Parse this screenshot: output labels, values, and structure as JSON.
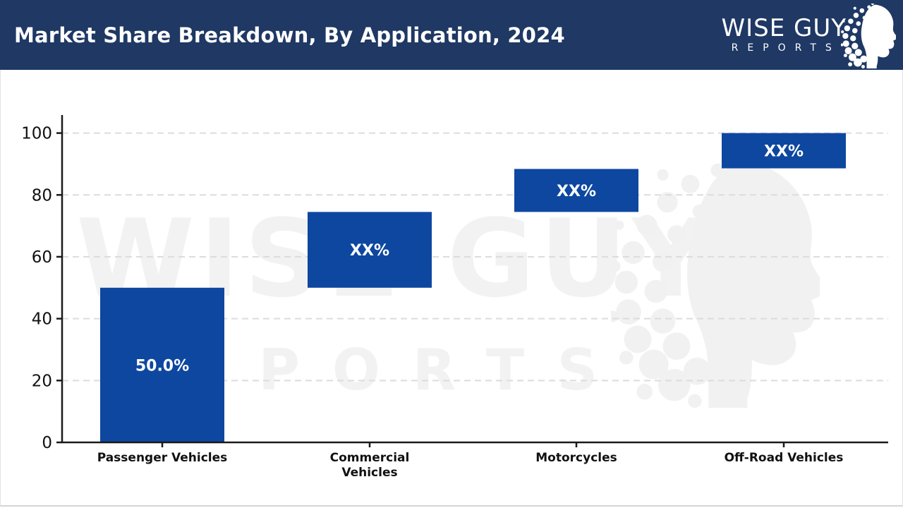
{
  "header": {
    "title": "Market Share Breakdown, By Application, 2024",
    "bg_color": "#1f3864",
    "logo": {
      "line1": "WISE GUY",
      "line2": "REPORTS"
    }
  },
  "watermark": {
    "line1": "WISE GUY",
    "line2": "REPORTS"
  },
  "chart_data": {
    "type": "bar",
    "variant": "waterfall",
    "title": "Market Share Breakdown, By Application, 2024",
    "categories": [
      "Passenger Vehicles",
      "Commercial Vehicles",
      "Motorcycles",
      "Off-Road Vehicles"
    ],
    "category_label_lines": [
      [
        "Passenger Vehicles"
      ],
      [
        "Commercial",
        "Vehicles"
      ],
      [
        "Motorcycles"
      ],
      [
        "Off-Road Vehicles"
      ]
    ],
    "segments": [
      {
        "category": "Passenger Vehicles",
        "start": 0,
        "end": 50,
        "label": "50.0%"
      },
      {
        "category": "Commercial Vehicles",
        "start": 50,
        "end": 74.5,
        "label": "XX%"
      },
      {
        "category": "Motorcycles",
        "start": 74.5,
        "end": 88.4,
        "label": "XX%"
      },
      {
        "category": "Off-Road Vehicles",
        "start": 88.6,
        "end": 100,
        "label": "XX%"
      }
    ],
    "xlabel": "",
    "ylabel": "",
    "ylim": [
      0,
      105.8
    ],
    "yticks": [
      0,
      20,
      40,
      60,
      80,
      100
    ],
    "grid": "horizontal-dashed",
    "legend": "none",
    "bar_color": "#0d47a0",
    "grid_color": "#dcdcdc",
    "axis_color": "#1a1a1a",
    "tick_label_color": "#111111",
    "value_label_color": "#ffffff"
  }
}
